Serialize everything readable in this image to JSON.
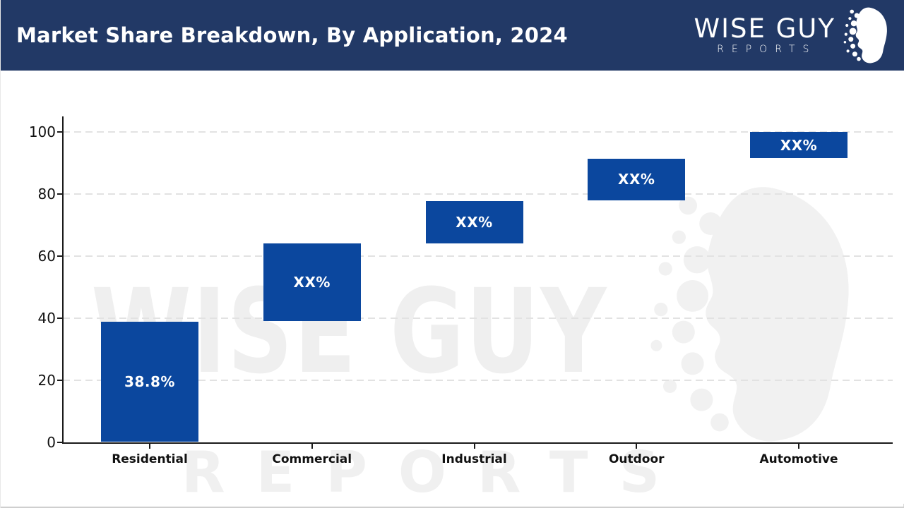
{
  "header": {
    "title": "Market Share Breakdown, By Application, 2024",
    "logo": {
      "line1": "WISE GUY",
      "line2": "REPORTS"
    },
    "bg_color": "#223966"
  },
  "watermark": {
    "line1": "WISE GUY",
    "line2": "REPORTS"
  },
  "chart_data": {
    "type": "bar",
    "subtype": "waterfall",
    "title": "Market Share Breakdown, By Application, 2024",
    "xlabel": "",
    "ylabel": "",
    "categories": [
      "Residential",
      "Commercial",
      "Industrial",
      "Outdoor",
      "Automotive"
    ],
    "segments": [
      {
        "label": "Residential",
        "start": 0,
        "end": 38.8,
        "text": "38.8%"
      },
      {
        "label": "Commercial",
        "start": 39.0,
        "end": 64.1,
        "text": "XX%"
      },
      {
        "label": "Industrial",
        "start": 64.1,
        "end": 77.8,
        "text": "XX%"
      },
      {
        "label": "Outdoor",
        "start": 78.0,
        "end": 91.4,
        "text": "XX%"
      },
      {
        "label": "Automotive",
        "start": 91.6,
        "end": 100.0,
        "text": "XX%"
      }
    ],
    "yticks": [
      0,
      20,
      40,
      60,
      80,
      100
    ],
    "ylim": [
      0,
      105
    ],
    "grid": "horizontal-dashed",
    "legend": "none",
    "bar_color": "#0b479e",
    "bar_label_color": "#ffffff"
  }
}
